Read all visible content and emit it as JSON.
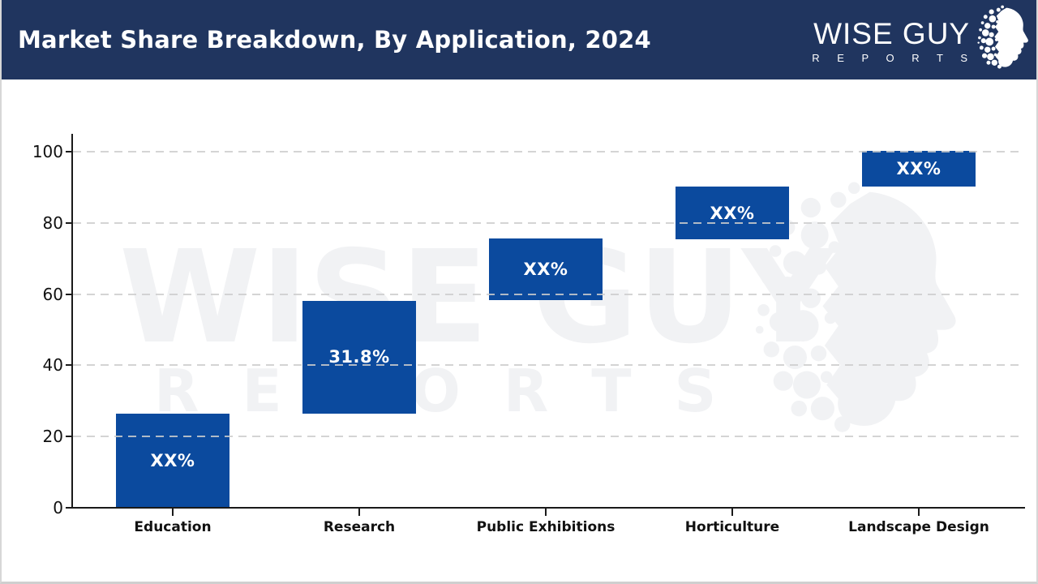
{
  "header": {
    "title": "Market Share Breakdown, By Application, 2024",
    "logo": {
      "line1": "WISE GUY",
      "line2": "R E P O R T S",
      "icon": "dotted-face-profile-icon"
    }
  },
  "watermark": {
    "line1": "WISE GUY",
    "line2": "R E P O R T S"
  },
  "chart_data": {
    "type": "bar",
    "variant": "waterfall-floating-bars",
    "title": "Market Share Breakdown, By Application, 2024",
    "categories": [
      "Education",
      "Research",
      "Public Exhibitions",
      "Horticulture",
      "Landscape Design"
    ],
    "series": [
      {
        "name": "Market share (%)",
        "segments": [
          {
            "category": "Education",
            "start": 0,
            "end": 26.4,
            "label": "XX%"
          },
          {
            "category": "Research",
            "start": 26.4,
            "end": 58.2,
            "label": "31.8%"
          },
          {
            "category": "Public Exhibitions",
            "start": 58.4,
            "end": 75.6,
            "label": "XX%"
          },
          {
            "category": "Horticulture",
            "start": 75.4,
            "end": 90.2,
            "label": "XX%"
          },
          {
            "category": "Landscape Design",
            "start": 90.2,
            "end": 100.2,
            "label": "XX%"
          }
        ]
      }
    ],
    "xlabel": "",
    "ylabel": "",
    "yticks": [
      0,
      20,
      40,
      60,
      80,
      100
    ],
    "ylim": [
      0,
      105
    ],
    "grid": "dashed-horizontal",
    "legend": "none",
    "colors": {
      "bar": "#0b4a9e",
      "bar_label": "#ffffff",
      "axis": "#1a1a1a",
      "gridline": "#d9d9d9",
      "header_bg": "#20355f",
      "watermark": "#f1f2f4"
    }
  }
}
